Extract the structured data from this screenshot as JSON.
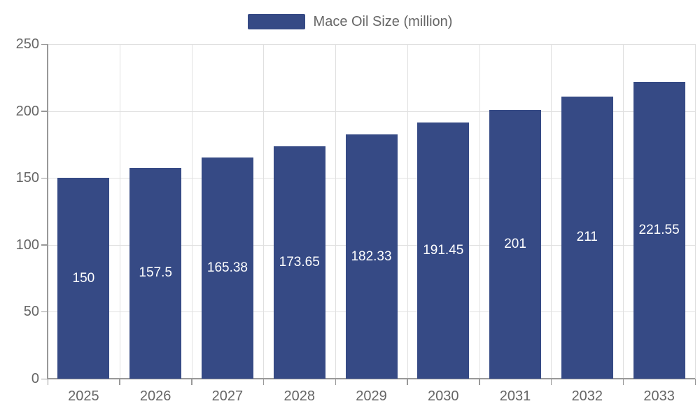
{
  "legend": {
    "label": "Mace Oil Size (million)"
  },
  "chart_data": {
    "type": "bar",
    "title": "Mace Oil Size (million)",
    "categories": [
      "2025",
      "2026",
      "2027",
      "2028",
      "2029",
      "2030",
      "2031",
      "2032",
      "2033"
    ],
    "values": [
      150,
      157.5,
      165.38,
      173.65,
      182.33,
      191.45,
      201,
      211,
      221.55
    ],
    "value_labels": [
      "150",
      "157.5",
      "165.38",
      "173.65",
      "182.33",
      "191.45",
      "201",
      "211",
      "221.55"
    ],
    "xlabel": "",
    "ylabel": "",
    "ylim": [
      0,
      250
    ],
    "yticks": [
      0,
      50,
      100,
      150,
      200,
      250
    ],
    "grid": true,
    "legend_position": "top",
    "colors": {
      "bar": "#364a85",
      "axis": "#999999",
      "grid": "#e0e0e0",
      "tick_text": "#666666",
      "value_text": "#ffffff",
      "legend_text": "#666666",
      "background": "#ffffff"
    }
  }
}
